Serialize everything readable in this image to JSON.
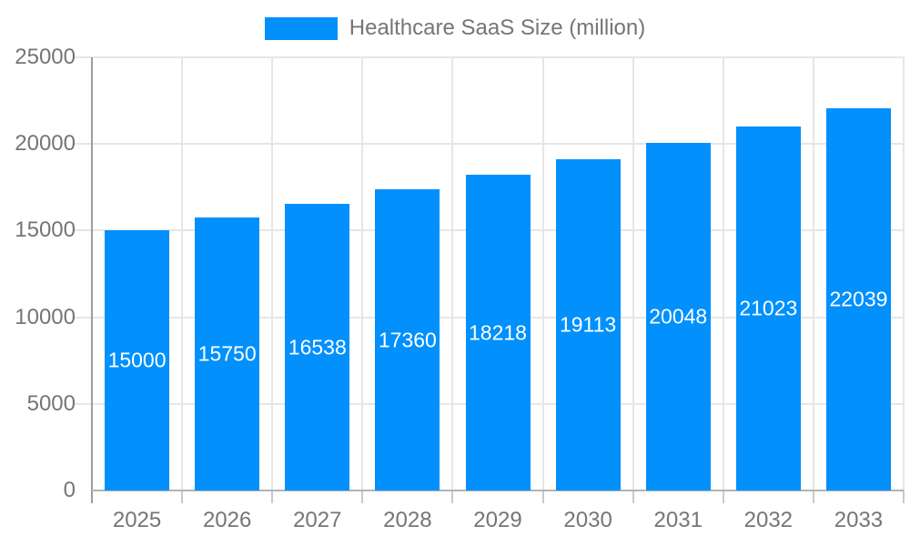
{
  "legend": {
    "label": "Healthcare SaaS Size (million)"
  },
  "chart_data": {
    "type": "bar",
    "title": "Healthcare SaaS Size (million)",
    "series": [
      {
        "name": "Healthcare SaaS Size (million)",
        "values": [
          15000,
          15750,
          16538,
          17360,
          18218,
          19113,
          20048,
          21023,
          22039
        ]
      }
    ],
    "categories": [
      "2025",
      "2026",
      "2027",
      "2028",
      "2029",
      "2030",
      "2031",
      "2032",
      "2033"
    ],
    "data_labels": [
      "15000",
      "15750",
      "16538",
      "17360",
      "18218",
      "19113",
      "20048",
      "21023",
      "22039"
    ],
    "xlabel": "",
    "ylabel": "",
    "ylim": [
      0,
      25000
    ],
    "yticks": [
      0,
      5000,
      10000,
      15000,
      20000,
      25000
    ],
    "ytick_labels": [
      "0",
      "5000",
      "10000",
      "15000",
      "20000",
      "25000"
    ],
    "grid": true,
    "legend_position": "top-center",
    "data_label_position": "inside-center",
    "colors": {
      "bar": "#0190fc",
      "data_label_text": "#ffffff",
      "axis_text": "#757575",
      "gridline": "#e6e6e6",
      "y_axis_line": "#9e9e9e",
      "x_axis_line": "#b3b3b3",
      "background": "#ffffff"
    }
  }
}
